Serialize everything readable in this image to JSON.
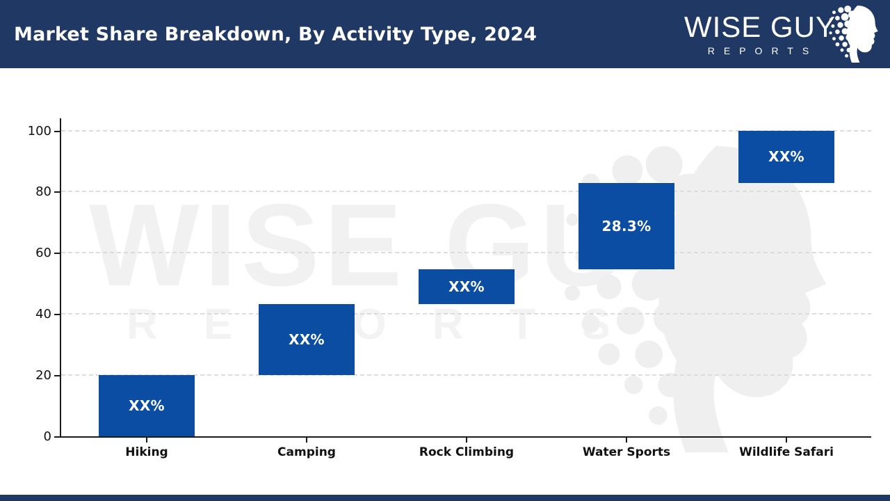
{
  "header": {
    "title": "Market Share Breakdown, By Activity Type, 2024",
    "logo": {
      "brand": "WISE GUY",
      "sub": "REPORTS"
    }
  },
  "watermark": {
    "brand": "WISE GUY",
    "sub": "REPORTS"
  },
  "footer": {},
  "colors": {
    "header_bg": "#1f3864",
    "footer_bg": "#1f3864",
    "bar": "#0b4da2",
    "bar_label": "#ffffff",
    "grid": "#dcdcdc",
    "axis": "#1a1a1a",
    "watermark_text": "#f1f1f1",
    "watermark_face": "#efefef"
  },
  "chart_data": {
    "type": "bar",
    "subtype": "waterfall",
    "title": "Market Share Breakdown, By Activity Type, 2024",
    "categories": [
      "Hiking",
      "Camping",
      "Rock Climbing",
      "Water Sports",
      "Wildlife Safari"
    ],
    "series": [
      {
        "name": "Market Share (%)",
        "segments": [
          {
            "category": "Hiking",
            "start": 0,
            "end": 20,
            "label": "XX%"
          },
          {
            "category": "Camping",
            "start": 20,
            "end": 43.2,
            "label": "XX%"
          },
          {
            "category": "Rock Climbing",
            "start": 43.2,
            "end": 54.6,
            "label": "XX%"
          },
          {
            "category": "Water Sports",
            "start": 54.6,
            "end": 82.9,
            "label": "28.3%"
          },
          {
            "category": "Wildlife Safari",
            "start": 82.9,
            "end": 100,
            "label": "XX%"
          }
        ]
      }
    ],
    "xlabel": "",
    "ylabel": "",
    "ylim": [
      0,
      104
    ],
    "yticks": [
      0,
      20,
      40,
      60,
      80,
      100
    ],
    "grid": "horizontal-dashed",
    "legend": "none"
  }
}
